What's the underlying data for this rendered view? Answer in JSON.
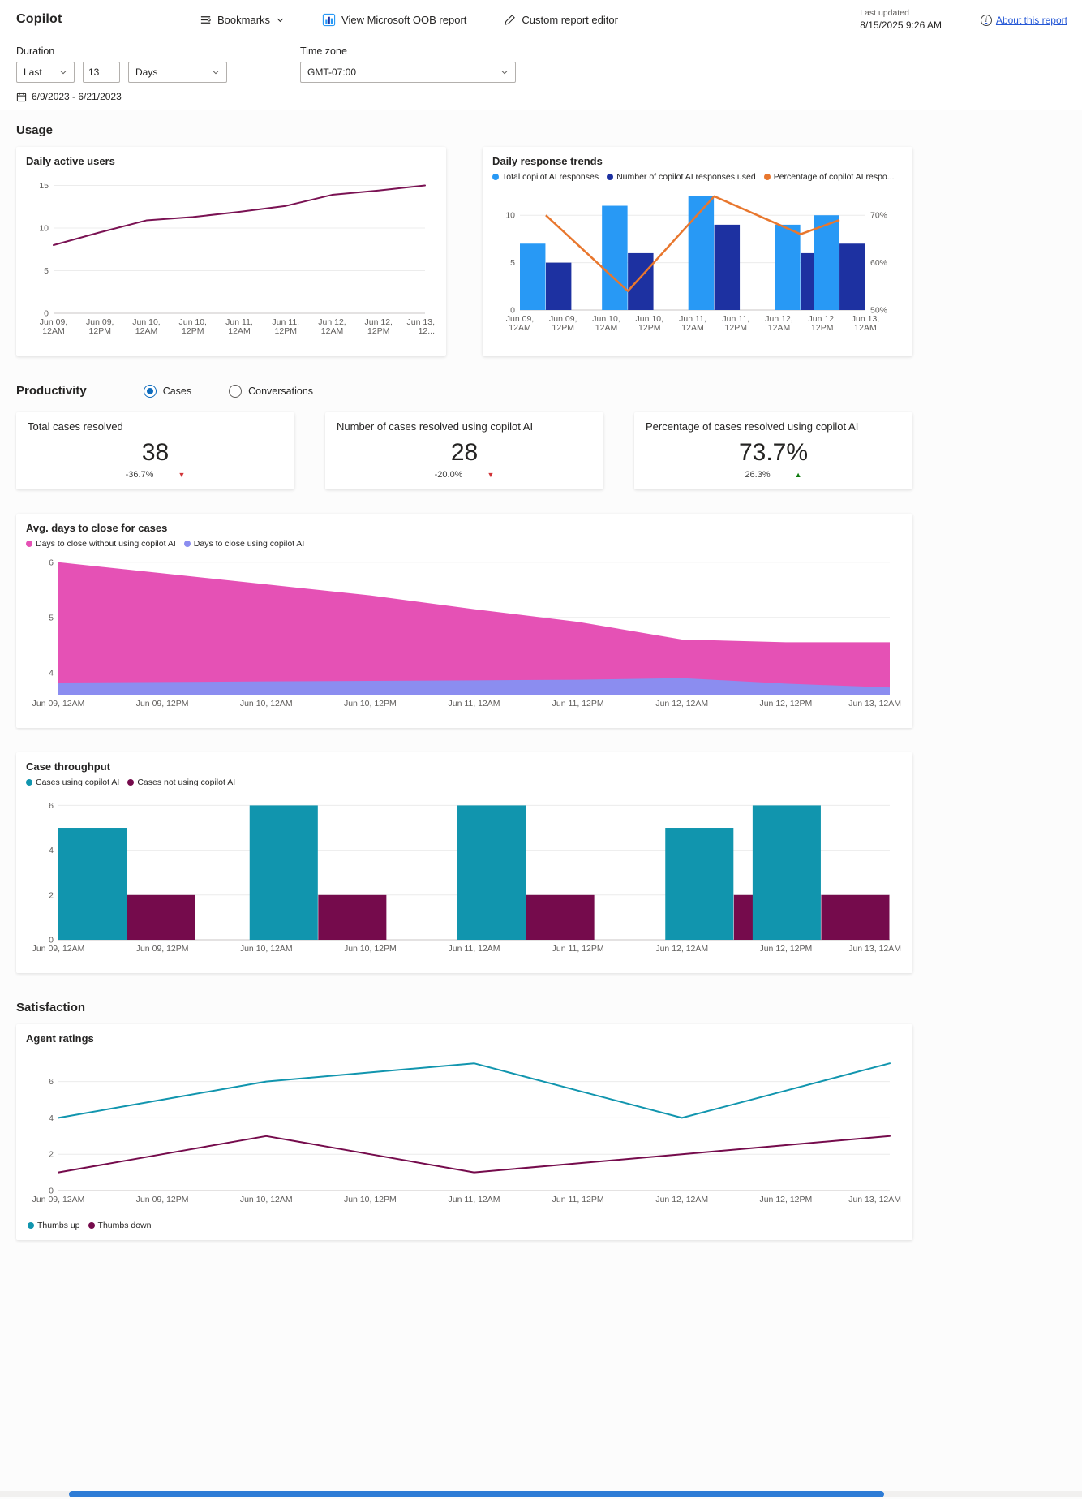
{
  "header": {
    "app_title": "Copilot",
    "bookmarks_label": "Bookmarks",
    "oob_report_label": "View Microsoft OOB report",
    "custom_report_label": "Custom report editor",
    "last_updated_label": "Last updated",
    "last_updated_value": "8/15/2025 9:26 AM",
    "about_link": "About this report"
  },
  "filters": {
    "duration_label": "Duration",
    "duration_mode": "Last",
    "duration_value": "13",
    "duration_unit": "Days",
    "timezone_label": "Time zone",
    "timezone_value": "GMT-07:00",
    "date_range": "6/9/2023 - 6/21/2023"
  },
  "sections": {
    "usage": "Usage",
    "productivity": "Productivity",
    "satisfaction": "Satisfaction"
  },
  "productivity": {
    "view_options": [
      {
        "label": "Cases",
        "state": "selected"
      },
      {
        "label": "Conversations",
        "state": "unselected"
      }
    ],
    "kpis": [
      {
        "title": "Total cases resolved",
        "value": "38",
        "delta": "-36.7%",
        "direction": "down",
        "arrow_glyph": "▼",
        "arrow_style": "color:#d13438"
      },
      {
        "title": "Number of cases resolved using copilot AI",
        "value": "28",
        "delta": "-20.0%",
        "direction": "down",
        "arrow_glyph": "▼",
        "arrow_style": "color:#d13438"
      },
      {
        "title": "Percentage of cases resolved using copilot AI",
        "value": "73.7%",
        "delta": "26.3%",
        "direction": "up",
        "arrow_glyph": "▲",
        "arrow_style": "color:#107c10"
      }
    ]
  },
  "colors": {
    "accent_blue": "#0f6cbd",
    "link_blue": "#2457d6",
    "negative_red": "#d13438",
    "positive_green": "#107c10",
    "scrollbar_thumb": "#2e7cd6"
  },
  "chart_data": [
    {
      "id": "daily-active-users",
      "type": "line",
      "title": "Daily active users",
      "x": [
        "Jun 09, 12AM",
        "Jun 09, 12PM",
        "Jun 10, 12AM",
        "Jun 10, 12PM",
        "Jun 11, 12AM",
        "Jun 11, 12PM",
        "Jun 12, 12AM",
        "Jun 12, 12PM",
        "Jun 13, 12..."
      ],
      "series": [
        {
          "name": "Daily active users",
          "color": "#7a1253",
          "values": [
            8,
            9.5,
            10.9,
            11.3,
            11.9,
            12.6,
            13.9,
            14.4,
            15
          ]
        }
      ],
      "ylim": [
        0,
        16
      ],
      "yticks": [
        0,
        5,
        10,
        15
      ],
      "x_two_line": true,
      "pad": [
        34,
        8,
        14,
        38
      ],
      "grid": true,
      "legend_position": "none"
    },
    {
      "id": "daily-response-trends",
      "type": "combo",
      "title": "Daily response trends",
      "x": [
        "Jun 09, 12AM",
        "Jun 09, 12PM",
        "Jun 10, 12AM",
        "Jun 10, 12PM",
        "Jun 11, 12AM",
        "Jun 11, 12PM",
        "Jun 12, 12AM",
        "Jun 12, 12PM",
        "Jun 13, 12AM"
      ],
      "bar_series": [
        {
          "name": "Total copilot AI responses",
          "color": "#2899f5",
          "values": [
            7,
            11,
            12,
            9,
            10
          ]
        },
        {
          "name": "Number of copilot AI responses used",
          "color": "#1d31a1",
          "values": [
            5,
            6,
            9,
            6,
            7
          ]
        }
      ],
      "line_series": {
        "name": "Percentage of copilot AI respo...",
        "color": "#e8772e",
        "values": [
          70,
          54,
          74,
          66,
          69
        ]
      },
      "ylim_left": [
        0,
        12.5
      ],
      "yticks": [
        0,
        5,
        10
      ],
      "ylim_right": [
        50,
        75
      ],
      "yticks_right": [
        50,
        60,
        70
      ],
      "right_suffix": "%",
      "group_centers": [
        0.5,
        2.5,
        4.5,
        6.5,
        8
      ],
      "bar_slot_width": 0.6,
      "x_two_line": true,
      "pad": [
        34,
        8,
        46,
        38
      ],
      "grid": true,
      "legend_position": "top"
    },
    {
      "id": "avg-days-to-close",
      "type": "area",
      "title": "Avg. days to close for cases",
      "x": [
        "Jun 09, 12AM",
        "Jun 09, 12PM",
        "Jun 10, 12AM",
        "Jun 10, 12PM",
        "Jun 11, 12AM",
        "Jun 11, 12PM",
        "Jun 12, 12AM",
        "Jun 12, 12PM",
        "Jun 13, 12AM"
      ],
      "series": [
        {
          "name": "Days to close without using copilot AI",
          "color": "#e551b5",
          "values": [
            6,
            5.8,
            5.6,
            5.4,
            5.15,
            4.92,
            4.6,
            4.55,
            4.55
          ]
        },
        {
          "name": "Days to close using copilot AI",
          "color": "#8b8df0",
          "values": [
            3.82,
            3.83,
            3.84,
            3.85,
            3.86,
            3.87,
            3.9,
            3.8,
            3.73
          ]
        }
      ],
      "ylim": [
        3.6,
        6.1
      ],
      "yticks": [
        4,
        5,
        6
      ],
      "pad": [
        40,
        6,
        16,
        26
      ],
      "grid": true,
      "legend_position": "top"
    },
    {
      "id": "case-throughput",
      "type": "bar",
      "title": "Case throughput",
      "x": [
        "Jun 09, 12AM",
        "Jun 09, 12PM",
        "Jun 10, 12AM",
        "Jun 10, 12PM",
        "Jun 11, 12AM",
        "Jun 11, 12PM",
        "Jun 12, 12AM",
        "Jun 12, 12PM",
        "Jun 13, 12AM"
      ],
      "series": [
        {
          "name": "Cases using copilot AI",
          "color": "#1195ae",
          "values": [
            5,
            6,
            6,
            5,
            6
          ]
        },
        {
          "name": "Cases not using copilot AI",
          "color": "#750b4c",
          "values": [
            2,
            2,
            2,
            2,
            2
          ]
        }
      ],
      "ylim": [
        0,
        6.45
      ],
      "yticks": [
        0,
        2,
        4,
        6
      ],
      "group_centers": [
        0.5,
        2.5,
        4.5,
        6.5,
        7.9
      ],
      "bar_slot_width": 0.66,
      "pad": [
        40,
        6,
        16,
        26
      ],
      "grid": true,
      "legend_position": "top"
    },
    {
      "id": "agent-ratings",
      "type": "line",
      "title": "Agent ratings",
      "x": [
        "Jun 09, 12AM",
        "Jun 09, 12PM",
        "Jun 10, 12AM",
        "Jun 10, 12PM",
        "Jun 11, 12AM",
        "Jun 11, 12PM",
        "Jun 12, 12AM",
        "Jun 12, 12PM",
        "Jun 13, 12AM"
      ],
      "series": [
        {
          "name": "Thumbs up",
          "color": "#1195ae",
          "values": [
            4,
            5,
            6,
            6.5,
            7,
            5.5,
            4,
            5.5,
            7
          ]
        },
        {
          "name": "Thumbs down",
          "color": "#750b4c",
          "values": [
            1,
            2,
            3,
            2,
            1,
            1.5,
            2,
            2.5,
            3
          ]
        }
      ],
      "ylim": [
        0,
        7.5
      ],
      "yticks": [
        0,
        2,
        4,
        6
      ],
      "pad": [
        40,
        8,
        16,
        26
      ],
      "grid": true,
      "legend_position": "bottom"
    }
  ]
}
